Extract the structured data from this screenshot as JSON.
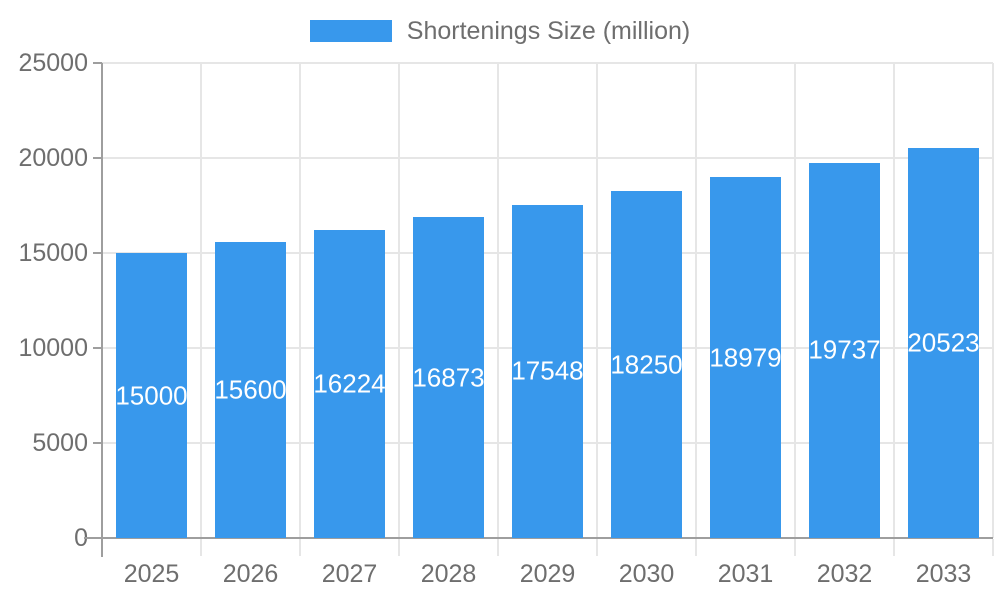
{
  "chart_data": {
    "type": "bar",
    "title": "",
    "xlabel": "",
    "ylabel": "",
    "legend": {
      "label": "Shortenings Size (million)",
      "position": "top"
    },
    "categories": [
      "2025",
      "2026",
      "2027",
      "2028",
      "2029",
      "2030",
      "2031",
      "2032",
      "2033"
    ],
    "series": [
      {
        "name": "Shortenings Size (million)",
        "values": [
          15000,
          15600,
          16224,
          16873,
          17548,
          18250,
          18979,
          19737,
          20523
        ]
      }
    ],
    "bar_value_labels": [
      "15000",
      "15600",
      "16224",
      "16873",
      "17548",
      "18250",
      "18979",
      "19737",
      "20523"
    ],
    "ylim": [
      0,
      25000
    ],
    "yticks": [
      0,
      5000,
      10000,
      15000,
      20000,
      25000
    ],
    "ytick_labels": [
      "0",
      "5000",
      "10000",
      "15000",
      "20000",
      "25000"
    ],
    "grid": true,
    "colors": {
      "bar": "#3898ec",
      "bar_label_text": "#ffffff",
      "axis_text": "#6e6e6e",
      "gridline": "#e6e6e6",
      "axis_line": "#9e9e9e",
      "background": "#ffffff"
    }
  }
}
